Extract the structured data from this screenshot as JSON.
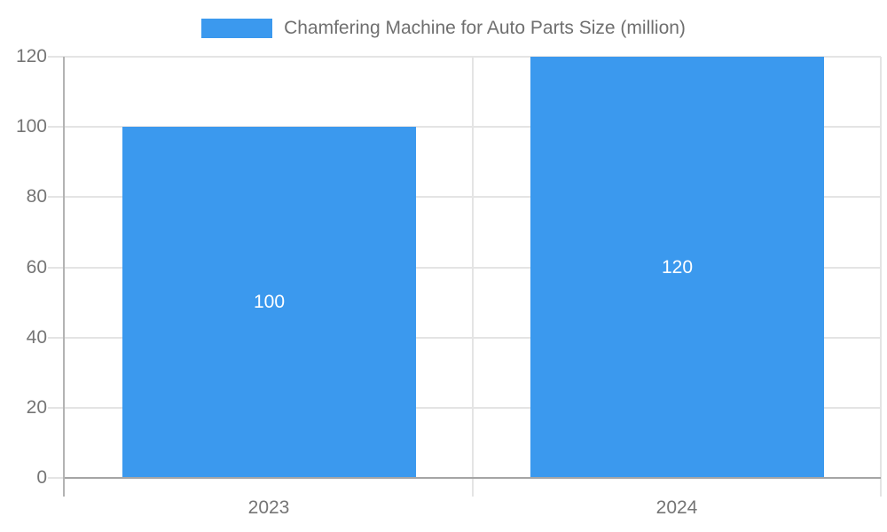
{
  "chart_data": {
    "type": "bar",
    "title": "Chamfering Machine for Auto Parts Size (million)",
    "series_name": "Chamfering Machine for Auto Parts Size (million)",
    "categories": [
      "2023",
      "2024"
    ],
    "values": [
      100,
      120
    ],
    "value_labels": [
      "100",
      "120"
    ],
    "xlabel": "",
    "ylabel": "",
    "ylim": [
      0,
      120
    ],
    "yticks": [
      0,
      20,
      40,
      60,
      80,
      100,
      120
    ],
    "grid": true,
    "legend_position": "top"
  },
  "colors": {
    "bar": "#3B99EE",
    "gridline": "#E4E4E4",
    "axis_y_line": "#B3B3B3",
    "axis_x_line": "#A5A5A5",
    "tick_text": "#757575",
    "legend_text": "#6F6F6F",
    "value_text": "#FFFFFF",
    "background": "#FFFFFF"
  }
}
